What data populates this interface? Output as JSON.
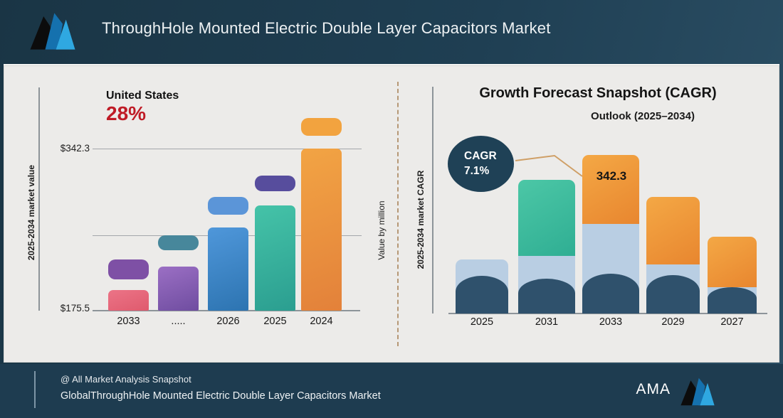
{
  "header": {
    "title": "ThroughHole Mounted Electric Double Layer Capacitors Market",
    "logo": "ama-mountain-logo"
  },
  "colors": {
    "header_navy": "#1f3f53",
    "card_bg": "#ecebe9",
    "accent_red": "#bf1b26",
    "badge_navy": "#1f4156",
    "connector_tan": "#cf9f66",
    "divider_dash": "#ad8a62"
  },
  "chart_data": [
    {
      "id": "us-market-value",
      "type": "bar",
      "title": "United States",
      "highlight": "28%",
      "ylabel": "2025-2034 market value",
      "ylabel_right": "Value by million",
      "categories": [
        "2033",
        ".....",
        "2026",
        "2025",
        "2024"
      ],
      "values": [
        197,
        221,
        261,
        284,
        342.3
      ],
      "ylim": [
        175.5,
        342.3
      ],
      "axis_ticks": [
        {
          "label": "$342.3",
          "value": 342.3
        },
        {
          "label": "$175.5",
          "value": 175.5
        }
      ],
      "gridline_values": [
        342.3,
        258.9
      ],
      "grid": "horizontal-only",
      "legend": "none",
      "bar_gradients": [
        [
          "#ec7487",
          "#df5a6d"
        ],
        [
          "#9b6fc4",
          "#6f4da0"
        ],
        [
          "#4f97da",
          "#2d74b1"
        ],
        [
          "#45c3a8",
          "#2b9e90"
        ],
        [
          "#f2a444",
          "#e3813a"
        ]
      ],
      "cap_colors": [
        "#7e50a5",
        "#47879b",
        "#5b95d8",
        "#574d9d",
        "#f2a33f"
      ]
    },
    {
      "id": "growth-forecast-cagr",
      "type": "stacked-bar",
      "title": "Growth Forecast Snapshot (CAGR)",
      "subtitle": "Outlook (2025–2034)",
      "ylabel": "2025-2034 market CAGR",
      "badge": {
        "line1": "CAGR",
        "line2": "7.1%"
      },
      "annotation": {
        "text": "342.3",
        "category": "2033"
      },
      "categories": [
        "2025",
        "2031",
        "2033",
        "2029",
        "2027"
      ],
      "units": "relative height (axis unlabeled)",
      "legend": "none",
      "series": [
        {
          "name": "base-dome",
          "color": "#2f516c",
          "values": [
            43,
            39,
            46,
            44,
            27
          ]
        },
        {
          "name": "mid-band",
          "color": "#b9cee3",
          "values": [
            33,
            44,
            82,
            27,
            12
          ]
        },
        {
          "name": "top-band",
          "values": [
            0,
            105,
            95,
            93,
            69
          ],
          "colors": [
            null,
            "teal",
            "orange",
            "orange",
            "orange"
          ],
          "teal_gradient": [
            "#4cc7a6",
            "#2fae93"
          ],
          "orange_gradient": [
            "#f4a845",
            "#e8862f"
          ]
        }
      ]
    }
  ],
  "footer": {
    "line1": "@ All Market Analysis Snapshot",
    "line2": "GlobalThroughHole Mounted Electric Double Layer Capacitors Market",
    "brand_text": "AMA",
    "logo": "ama-mountain-logo"
  }
}
